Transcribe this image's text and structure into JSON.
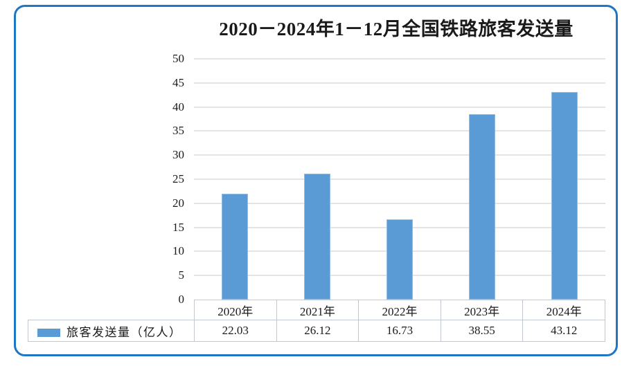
{
  "chart_data": {
    "type": "bar",
    "title": "2020－2024年1－12月全国铁路旅客发送量",
    "categories": [
      "2020年",
      "2021年",
      "2022年",
      "2023年",
      "2024年"
    ],
    "series": [
      {
        "name": "旅客发送量（亿人）",
        "values": [
          22.03,
          26.12,
          16.73,
          38.55,
          43.12
        ]
      }
    ],
    "value_labels": [
      "22.03",
      "26.12",
      "16.73",
      "38.55",
      "43.12"
    ],
    "xlabel": "",
    "ylabel": "",
    "ylim": [
      0,
      50
    ],
    "ytick_step": 5,
    "ytick_labels": [
      "0",
      "5",
      "10",
      "15",
      "20",
      "25",
      "30",
      "35",
      "40",
      "45",
      "50"
    ],
    "grid": true,
    "legend_position": "bottom-table-row"
  },
  "colors": {
    "bar": "#5B9BD5",
    "frame_border": "#1F76C4",
    "gridline": "#E4E4E4",
    "table_border": "#C2C8CF",
    "text": "#1A1A1A",
    "background": "#FFFFFF"
  }
}
